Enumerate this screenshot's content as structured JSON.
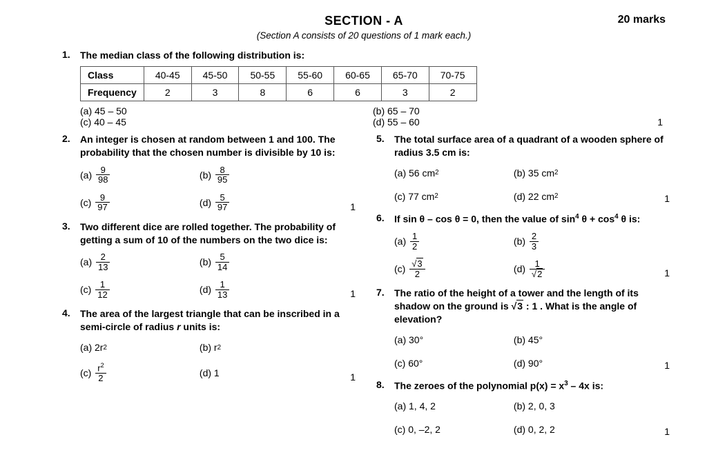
{
  "header": {
    "title": "SECTION - A",
    "marks": "20 marks",
    "subtitle": "(Section A consists of 20 questions of 1 mark each.)"
  },
  "q1": {
    "num": "1.",
    "text": "The median class of the following distribution is:",
    "table": {
      "row1": [
        "Class",
        "40-45",
        "45-50",
        "50-55",
        "55-60",
        "60-65",
        "65-70",
        "70-75"
      ],
      "row2": [
        "Frequency",
        "2",
        "3",
        "8",
        "6",
        "6",
        "3",
        "2"
      ]
    },
    "a": "(a) 45 – 50",
    "b": "(b) 65 – 70",
    "c": "(c) 40 – 45",
    "d": "(d) 55 – 60",
    "mark": "1"
  },
  "q2": {
    "num": "2.",
    "text": "An integer is chosen at random between 1 and 100. The probability that the chosen number is divisible by 10 is:",
    "a_lab": "(a)",
    "a_n": "9",
    "a_d": "98",
    "b_lab": "(b)",
    "b_n": "8",
    "b_d": "95",
    "c_lab": "(c)",
    "c_n": "9",
    "c_d": "97",
    "d_lab": "(d)",
    "d_n": "5",
    "d_d": "97",
    "mark": "1"
  },
  "q3": {
    "num": "3.",
    "text": "Two different dice are rolled together. The probability of getting a sum of 10 of the numbers on the two dice is:",
    "a_lab": "(a)",
    "a_n": "2",
    "a_d": "13",
    "b_lab": "(b)",
    "b_n": "5",
    "b_d": "14",
    "c_lab": "(c)",
    "c_n": "1",
    "c_d": "12",
    "d_lab": "(d)",
    "d_n": "1",
    "d_d": "13",
    "mark": "1"
  },
  "q4": {
    "num": "4.",
    "text_a": "The area of the largest triangle that can be inscribed in a semi-circle of radius ",
    "text_b": " units is:",
    "r": "r",
    "a": "(a) 2r",
    "b": "(b) r",
    "c_lab": "(c)",
    "c_n": "r",
    "c_d": "2",
    "d": "(d) 1",
    "mark": "1"
  },
  "q5": {
    "num": "5.",
    "text": "The total surface area of a quadrant of a wooden sphere of radius 3.5 cm is:",
    "a": "(a) 56 cm",
    "b": "(b) 35 cm",
    "c": "(c) 77 cm",
    "d": "(d) 22 cm",
    "sq": "2",
    "mark": "1"
  },
  "q6": {
    "num": "6.",
    "text_a": "If sin θ – cos θ = 0, then the value of sin",
    "text_b": " θ + cos",
    "text_c": " θ is:",
    "p": "4",
    "a_lab": "(a)",
    "a_n": "1",
    "a_d": "2",
    "b_lab": "(b)",
    "b_n": "2",
    "b_d": "3",
    "c_lab": "(c)",
    "d_lab": "(d)",
    "d_n": "1",
    "mark": "1"
  },
  "q7": {
    "num": "7.",
    "text_a": "The ratio of the height of a tower and the length of its shadow on the ground is ",
    "text_b": " : 1 . What is the angle of elevation?",
    "a": "(a) 30°",
    "b": "(b) 45°",
    "c": "(c) 60°",
    "d": "(d) 90°",
    "mark": "1"
  },
  "q8": {
    "num": "8.",
    "text_a": "The zeroes of the polynomial p(x) = x",
    "text_b": " – 4x is:",
    "p": "3",
    "a": "(a) 1, 4, 2",
    "b": "(b) 2, 0, 3",
    "c": "(c) 0, –2, 2",
    "d": "(d) 0, 2, 2",
    "mark": "1"
  }
}
